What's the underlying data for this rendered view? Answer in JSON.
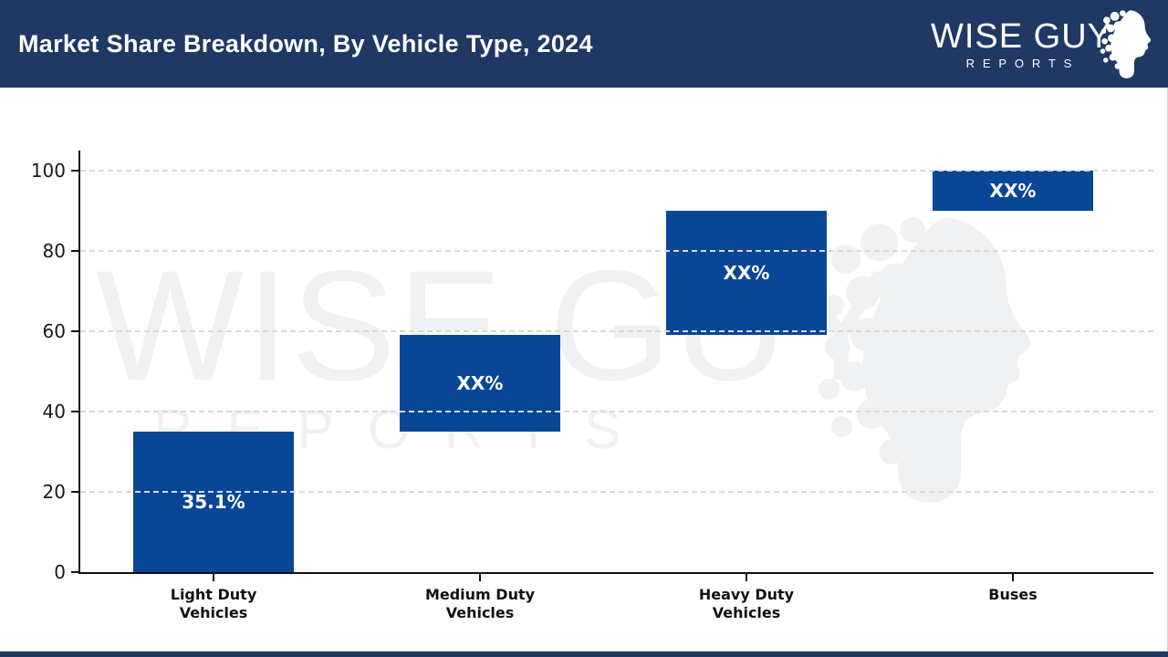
{
  "header": {
    "title": "Market Share Breakdown, By Vehicle Type, 2024",
    "logo": {
      "main": "WISE GUY",
      "sub": "REPORTS"
    }
  },
  "watermark": {
    "main": "WISE GUY",
    "sub": "REPORTS"
  },
  "colors": {
    "header_bg": "#1f3864",
    "bar": "#0a4696",
    "grid": "#d9d9d9",
    "axis": "#111111",
    "label_on_bar": "#ffffff",
    "watermark": "#f0f1f3"
  },
  "chart_data": {
    "type": "bar",
    "subtype": "waterfall",
    "title": "Market Share Breakdown, By Vehicle Type, 2024",
    "categories": [
      [
        "Light Duty",
        "Vehicles"
      ],
      [
        "Medium Duty",
        "Vehicles"
      ],
      [
        "Heavy Duty",
        "Vehicles"
      ],
      [
        "Buses"
      ]
    ],
    "segments": [
      {
        "name": "Light Duty Vehicles",
        "start": 0,
        "end": 35.1,
        "label": "35.1%"
      },
      {
        "name": "Medium Duty Vehicles",
        "start": 35.1,
        "end": 59,
        "label": "XX%"
      },
      {
        "name": "Heavy Duty Vehicles",
        "start": 59,
        "end": 90,
        "label": "XX%"
      },
      {
        "name": "Buses",
        "start": 90,
        "end": 100,
        "label": "XX%"
      }
    ],
    "ylim": [
      0,
      105
    ],
    "yticks": [
      0,
      20,
      40,
      60,
      80,
      100
    ],
    "xlabel": "",
    "ylabel": "",
    "grid": "horizontal-dashed",
    "legend": "none"
  }
}
